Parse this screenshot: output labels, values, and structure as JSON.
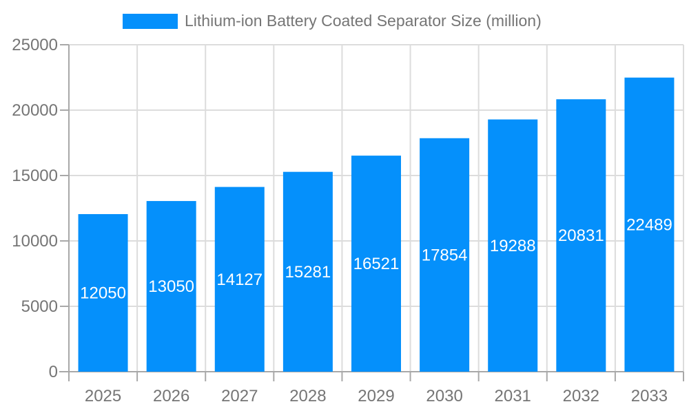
{
  "chart_data": {
    "type": "bar",
    "title": "Lithium-ion Battery Coated Separator Size (million)",
    "categories": [
      "2025",
      "2026",
      "2027",
      "2028",
      "2029",
      "2030",
      "2031",
      "2032",
      "2033"
    ],
    "values": [
      12050,
      13050,
      14127,
      15281,
      16521,
      17854,
      19288,
      20831,
      22489
    ],
    "xlabel": "",
    "ylabel": "",
    "ylim": [
      0,
      25000
    ],
    "yticks": [
      0,
      5000,
      10000,
      15000,
      20000,
      25000
    ],
    "grid": true,
    "legend_position": "top",
    "colors": {
      "bar": "#0590FB",
      "bar_value_label": "#FFFFFF",
      "axis_text": "#757575",
      "grid_line": "#DCDCDC",
      "axis_line": "#A8A8A8",
      "background": "#FFFFFF"
    }
  }
}
